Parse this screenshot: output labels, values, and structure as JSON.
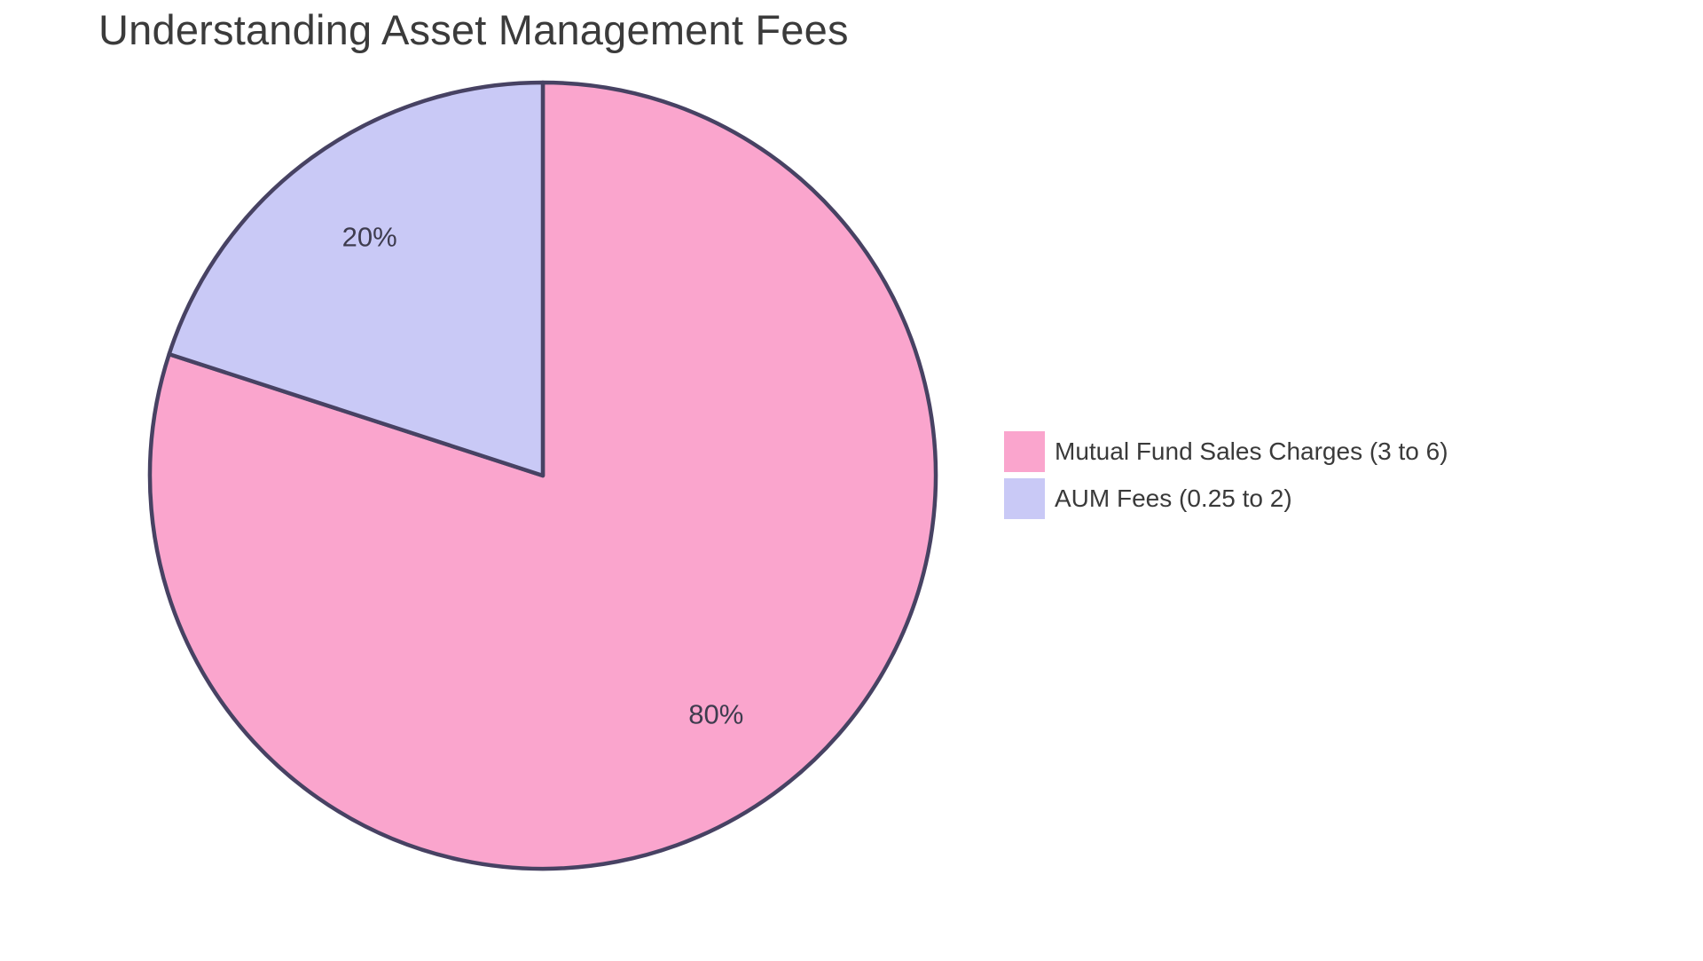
{
  "title": "Understanding Asset Management Fees",
  "chart_data": {
    "type": "pie",
    "title": "Understanding Asset Management Fees",
    "labels": [
      "Mutual Fund Sales Charges (3 to 6)",
      "AUM Fees (0.25 to 2)"
    ],
    "values": [
      80,
      20
    ],
    "slice_labels": [
      "80%",
      "20%"
    ],
    "colors": [
      "#faa5cd",
      "#c9c9f6"
    ],
    "border_color": "#474263",
    "slice_label_color": "#3e3c4e",
    "start_angle_deg": 0,
    "direction": "clockwise",
    "legend_position": "right",
    "background": "#ffffff"
  },
  "legend": {
    "items": [
      {
        "label": "Mutual Fund Sales Charges (3 to 6)",
        "color": "#faa5cd"
      },
      {
        "label": "AUM Fees (0.25 to 2)",
        "color": "#c9c9f6"
      }
    ]
  }
}
